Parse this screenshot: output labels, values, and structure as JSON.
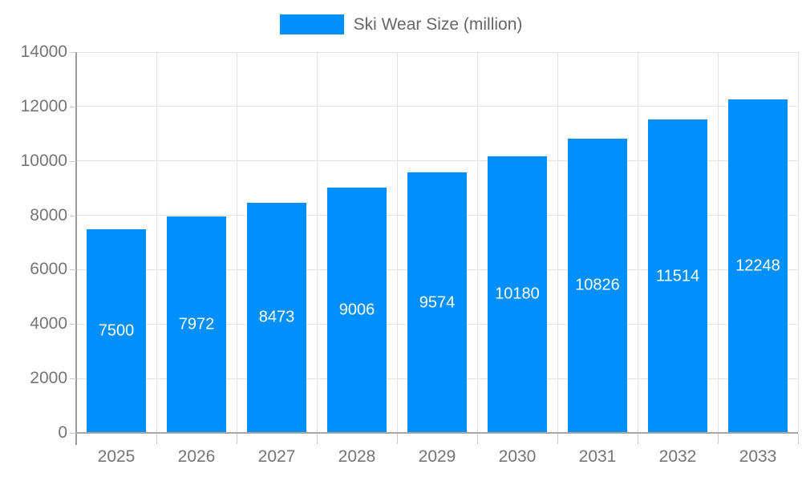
{
  "chart_data": {
    "type": "bar",
    "title": "",
    "series_name": "Ski Wear Size (million)",
    "categories": [
      "2025",
      "2026",
      "2027",
      "2028",
      "2029",
      "2030",
      "2031",
      "2032",
      "2033"
    ],
    "values": [
      7500,
      7972,
      8473,
      9006,
      9574,
      10180,
      10826,
      11514,
      12248
    ],
    "xlabel": "",
    "ylabel": "",
    "ylim": [
      0,
      14000
    ],
    "y_ticks": [
      0,
      2000,
      4000,
      6000,
      8000,
      10000,
      12000,
      14000
    ],
    "grid": true,
    "legend_position": "top",
    "value_labels": "inside-center",
    "colors": {
      "bar": "#008FFB",
      "axis_line": "#9a9a9a",
      "gridline": "#e3e3e3",
      "tick_mark": "#cccccc",
      "tick_text": "#757575",
      "legend_text": "#666666",
      "value_label_text": "#ffffff",
      "background": "#ffffff"
    }
  }
}
